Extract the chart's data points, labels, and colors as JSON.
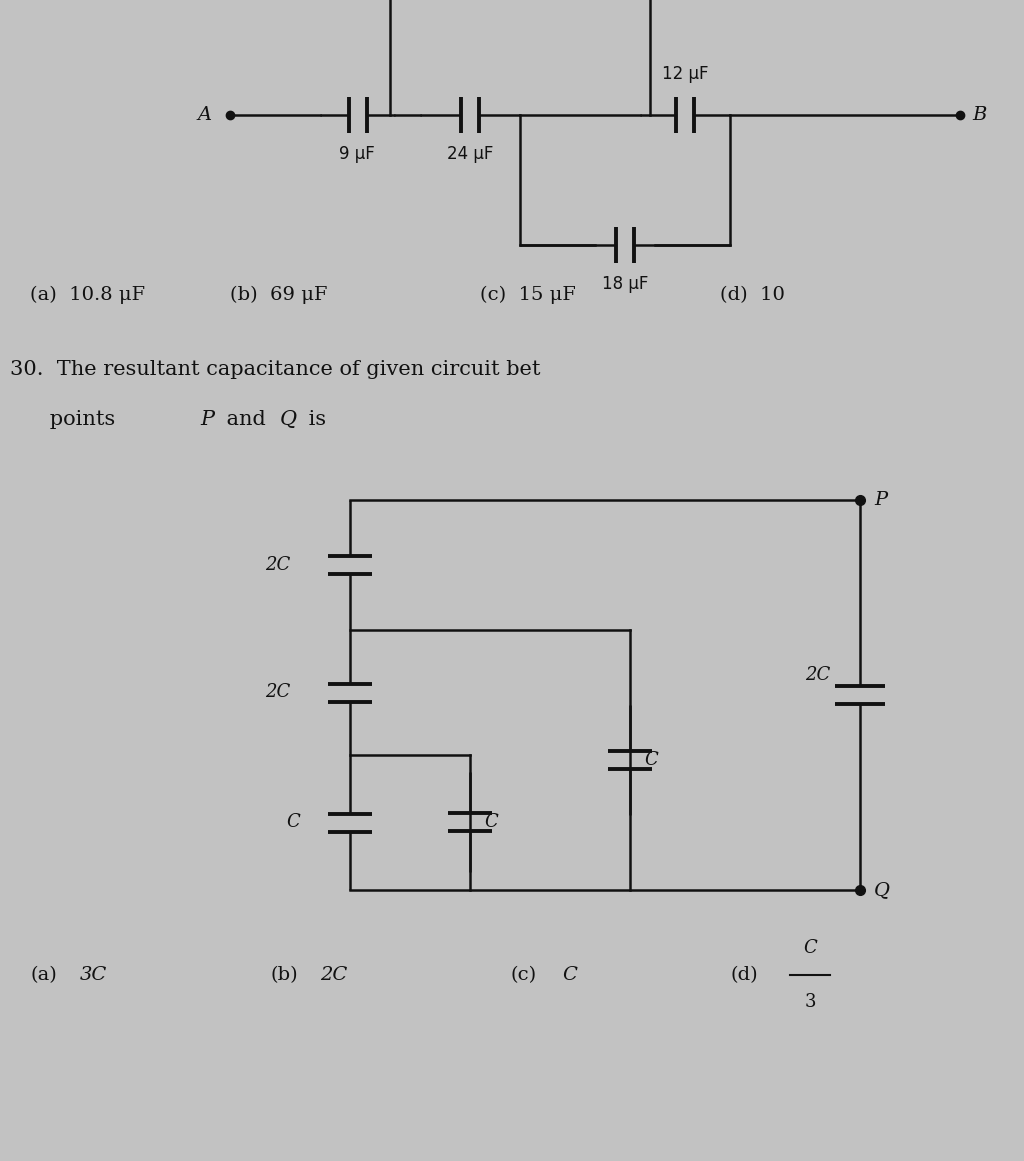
{
  "bg_color": "#c2c2c2",
  "line_color": "#111111",
  "lw": 1.8,
  "q29_answers": [
    "(a)  10.8 μF",
    "(b)  69 μF",
    "(c)  15 μF",
    "(d)  10"
  ],
  "q30_line1": "30.  The resultant capacitance of given circuit bet",
  "q30_line2": "      points",
  "q30_P": "P",
  "q30_and": " and ",
  "q30_Q": "Q",
  "q30_is": " is"
}
